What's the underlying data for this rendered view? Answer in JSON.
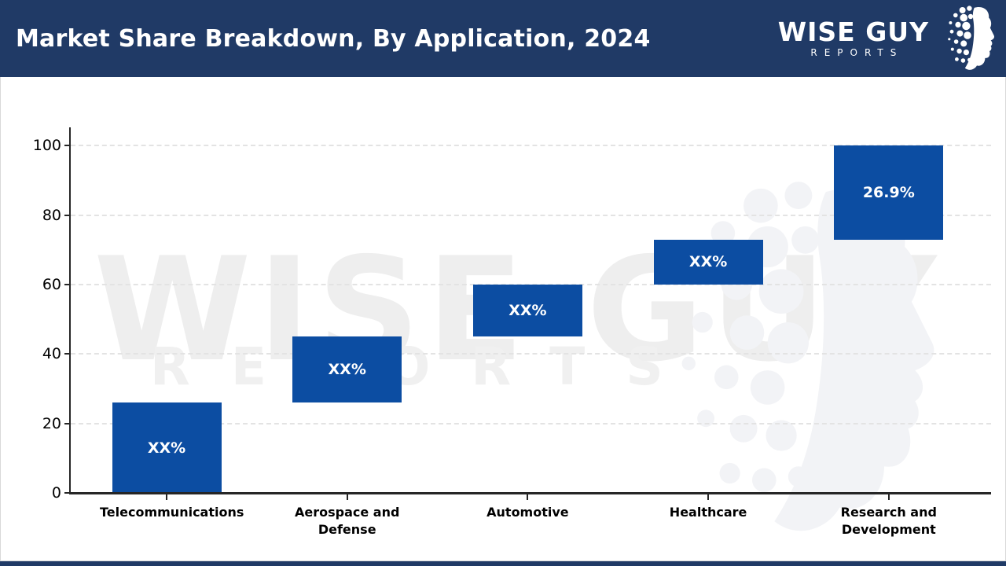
{
  "header": {
    "title": "Market Share Breakdown, By Application, 2024"
  },
  "brand": {
    "name": "WISE GUY",
    "tagline": "REPORTS"
  },
  "watermark": {
    "line1": "WISE GUY",
    "line2": "REPORTS"
  },
  "colors": {
    "header_bg": "#203a66",
    "bar_blue": "#0c4da2",
    "gridline": "#e3e3e3",
    "axis": "#262626",
    "watermark_gray": "#eeeeee"
  },
  "chart_data": {
    "type": "bar",
    "subtype": "waterfall-floating-segments",
    "title": "Market Share Breakdown, By Application, 2024",
    "xlabel": "",
    "ylabel": "",
    "categories": [
      "Telecommunications",
      "Aerospace and Defense",
      "Automotive",
      "Healthcare",
      "Research and Development"
    ],
    "segments": [
      {
        "category": "Telecommunications",
        "start": 0,
        "end": 26,
        "size": 26,
        "label": "XX%"
      },
      {
        "category": "Aerospace and Defense",
        "start": 26,
        "end": 45,
        "size": 19,
        "label": "XX%"
      },
      {
        "category": "Automotive",
        "start": 45,
        "end": 60,
        "size": 15,
        "label": "XX%"
      },
      {
        "category": "Healthcare",
        "start": 60,
        "end": 73,
        "size": 13,
        "label": "XX%"
      },
      {
        "category": "Research and Development",
        "start": 73,
        "end": 100,
        "size": 26.9,
        "label": "26.9%"
      }
    ],
    "yticks": [
      0,
      20,
      40,
      60,
      80,
      100
    ],
    "ylim": [
      0,
      103.5
    ],
    "grid": "horizontal-dashed",
    "legend": "none",
    "bar_color": "#0c4da2",
    "value_label_color": "#ffffff"
  }
}
